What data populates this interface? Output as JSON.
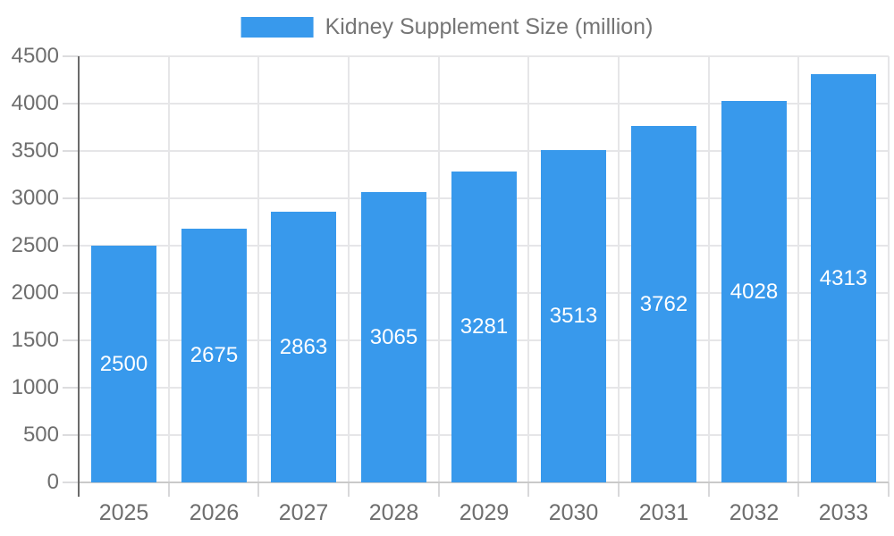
{
  "legend": {
    "label": "Kidney Supplement Size (million)"
  },
  "chart_data": {
    "type": "bar",
    "title": "",
    "xlabel": "",
    "ylabel": "",
    "categories": [
      "2025",
      "2026",
      "2027",
      "2028",
      "2029",
      "2030",
      "2031",
      "2032",
      "2033"
    ],
    "series": [
      {
        "name": "Kidney Supplement Size (million)",
        "values": [
          2500,
          2675,
          2863,
          3065,
          3281,
          3513,
          3762,
          4028,
          4313
        ]
      }
    ],
    "ylim": [
      0,
      4500
    ],
    "ytick_step": 500,
    "yticks": [
      0,
      500,
      1000,
      1500,
      2000,
      2500,
      3000,
      3500,
      4000,
      4500
    ],
    "grid": true,
    "legend_position": "top-center",
    "value_labels": "inside-middle"
  },
  "colors": {
    "bar": "#3899EC",
    "bar_label": "#FFFFFF",
    "axis_line": "#6B6B6B",
    "zero_line": "#C9C9C9",
    "gridline": "#E6E6E8",
    "tick_label": "#6E6E6E",
    "legend_text": "#757575",
    "background": "#FFFFFF"
  }
}
